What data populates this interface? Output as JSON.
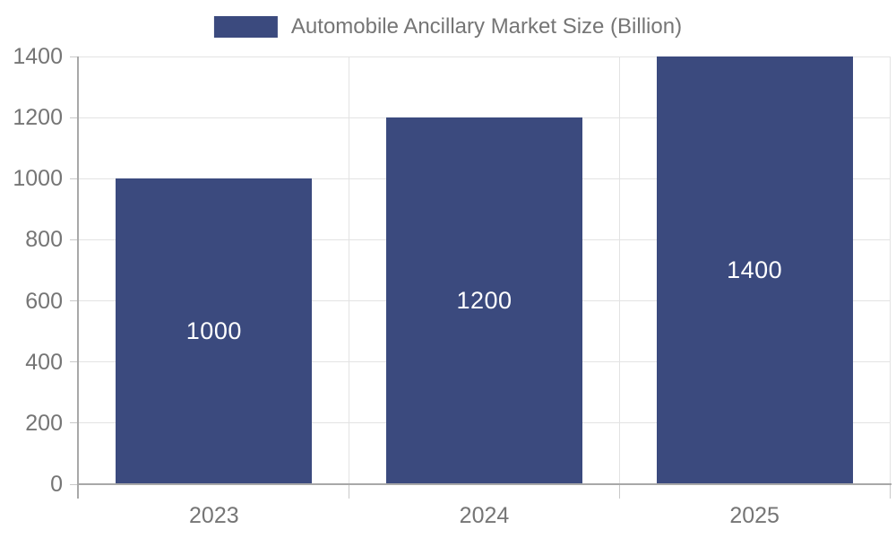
{
  "chart_data": {
    "type": "bar",
    "title": "Automobile Ancillary Market Size (Billion)",
    "legend_label": "Automobile Ancillary Market Size (Billion)",
    "legend_position": "top-center",
    "categories": [
      "2023",
      "2024",
      "2025"
    ],
    "values": [
      1000,
      1200,
      1400
    ],
    "xlabel": "",
    "ylabel": "",
    "ylim": [
      0,
      1400
    ],
    "yticks": [
      0,
      200,
      400,
      600,
      800,
      1000,
      1200,
      1400
    ],
    "grid": "on",
    "bar_value_labels_shown": true,
    "colors": {
      "bar": "#3B4A7E",
      "bar_label": "#FFFFFF",
      "axis_text": "#757575",
      "grid_line": "#E3E3E3",
      "axis_line": "#A8A8A8",
      "tick_line": "#C9C9C9",
      "background": "#FFFFFF"
    }
  }
}
